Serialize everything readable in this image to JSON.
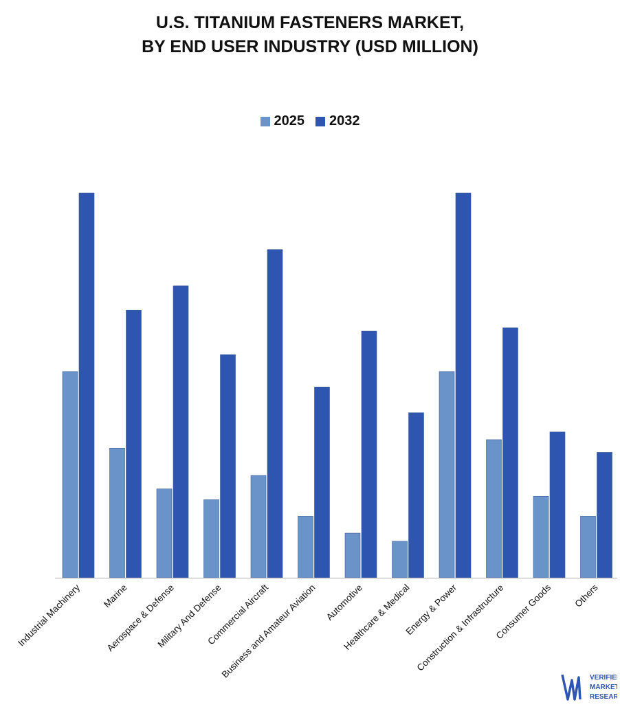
{
  "title_line1": "U.S. TITANIUM FASTENERS MARKET,",
  "title_line2": "BY END USER INDUSTRY (USD MILLION)",
  "colors": {
    "series_2025": "#6a93c9",
    "series_2032": "#2e55b0",
    "axis": "#bfbfbf",
    "text": "#111111"
  },
  "logo": {
    "line1": "VERIFIED",
    "line2": "MARKET",
    "line3": "RESEARCH",
    "mark": "VMR-logo"
  },
  "chart_data": {
    "type": "bar",
    "title": "U.S. TITANIUM FASTENERS MARKET, BY END USER INDUSTRY (USD MILLION)",
    "xlabel": "",
    "ylabel": "",
    "ylim": [
      0,
      100
    ],
    "grid": false,
    "legend": "top-center",
    "categories": [
      "Industrial Machinery",
      "Marine",
      "Aerospace & Defense",
      "Military And Defense",
      "Commercial Aircraft",
      "Business and Amateur Aviation",
      "Automotive",
      "Healthcare & Medical",
      "Energy & Power",
      "Construction & Infrastructure",
      "Consumer Goods",
      "Others"
    ],
    "series": [
      {
        "name": "2025",
        "values": [
          53.6,
          33.7,
          23.1,
          20.3,
          26.6,
          16.0,
          11.6,
          9.5,
          53.6,
          35.9,
          21.2,
          16.0
        ]
      },
      {
        "name": "2032",
        "values": [
          100.0,
          69.6,
          75.9,
          58.0,
          85.3,
          49.6,
          64.1,
          42.9,
          100.0,
          65.0,
          37.9,
          32.6
        ]
      }
    ]
  }
}
